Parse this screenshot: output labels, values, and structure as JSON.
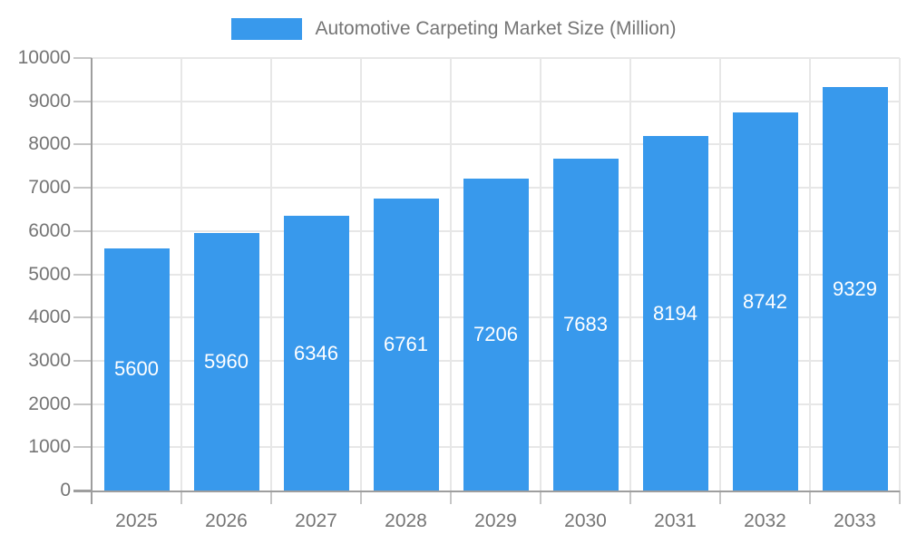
{
  "chart_data": {
    "type": "bar",
    "title": "Automotive Carpeting Market Size (Million)",
    "legend": {
      "position": "top",
      "items": [
        "Automotive Carpeting Market Size (Million)"
      ]
    },
    "categories": [
      "2025",
      "2026",
      "2027",
      "2028",
      "2029",
      "2030",
      "2031",
      "2032",
      "2033"
    ],
    "series": [
      {
        "name": "Automotive Carpeting Market Size (Million)",
        "values": [
          5600,
          5960,
          6346,
          6761,
          7206,
          7683,
          8194,
          8742,
          9329
        ]
      }
    ],
    "value_labels_shown": true,
    "xlabel": "",
    "ylabel": "",
    "ylim": [
      0,
      10000
    ],
    "yticks": [
      0,
      1000,
      2000,
      3000,
      4000,
      5000,
      6000,
      7000,
      8000,
      9000,
      10000
    ],
    "grid": true,
    "colors": {
      "bar": "#3899ec",
      "axis_text": "#757575",
      "value_label": "#ffffff",
      "gridline": "#e7e7e7",
      "axis_line": "#9e9e9e",
      "tick": "#c6c6c6",
      "background": "#ffffff"
    }
  }
}
